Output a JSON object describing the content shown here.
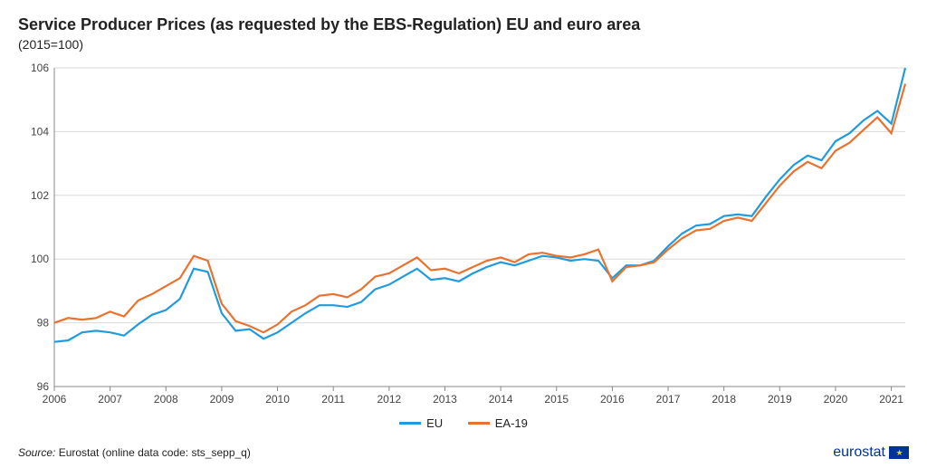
{
  "header": {
    "title": "Service Producer Prices (as requested by the EBS-Regulation)  EU and euro area",
    "subtitle": "(2015=100)"
  },
  "chart": {
    "type": "line",
    "background_color": "#ffffff",
    "grid_color": "#d9d9d9",
    "axis_color": "#888888",
    "axis_fontsize": 12,
    "title_fontsize": 18,
    "line_width": 2.2,
    "y": {
      "min": 96,
      "max": 106,
      "tick_step": 2
    },
    "x": {
      "start_year": 2006,
      "end_year_tick": 2021,
      "points_per_year": 4,
      "ticks": [
        2006,
        2007,
        2008,
        2009,
        2010,
        2011,
        2012,
        2013,
        2014,
        2015,
        2016,
        2017,
        2018,
        2019,
        2020,
        2021
      ]
    },
    "series": [
      {
        "name": "EU",
        "color": "#1f9bde",
        "values": [
          97.4,
          97.45,
          97.7,
          97.75,
          97.7,
          97.6,
          97.95,
          98.25,
          98.4,
          98.75,
          99.7,
          99.6,
          98.3,
          97.75,
          97.8,
          97.5,
          97.7,
          98.0,
          98.3,
          98.55,
          98.55,
          98.5,
          98.65,
          99.05,
          99.2,
          99.45,
          99.7,
          99.35,
          99.4,
          99.3,
          99.55,
          99.75,
          99.9,
          99.8,
          99.95,
          100.1,
          100.05,
          99.95,
          100.0,
          99.95,
          99.4,
          99.8,
          99.8,
          99.95,
          100.4,
          100.8,
          101.05,
          101.1,
          101.35,
          101.4,
          101.35,
          101.95,
          102.5,
          102.95,
          103.25,
          103.1,
          103.7,
          103.95,
          104.35,
          104.65,
          104.25,
          106.0
        ]
      },
      {
        "name": "EA-19",
        "color": "#e9722e",
        "values": [
          98.0,
          98.15,
          98.1,
          98.15,
          98.35,
          98.2,
          98.7,
          98.9,
          99.15,
          99.4,
          100.1,
          99.95,
          98.6,
          98.05,
          97.9,
          97.7,
          97.95,
          98.35,
          98.55,
          98.85,
          98.9,
          98.8,
          99.05,
          99.45,
          99.55,
          99.8,
          100.05,
          99.65,
          99.7,
          99.55,
          99.75,
          99.95,
          100.05,
          99.9,
          100.15,
          100.2,
          100.1,
          100.05,
          100.15,
          100.3,
          99.3,
          99.75,
          99.8,
          99.9,
          100.3,
          100.65,
          100.9,
          100.95,
          101.2,
          101.3,
          101.2,
          101.75,
          102.3,
          102.75,
          103.05,
          102.85,
          103.4,
          103.65,
          104.05,
          104.45,
          103.95,
          105.5
        ]
      }
    ]
  },
  "legend": {
    "items": [
      {
        "label": "EU",
        "color_ref": "EU"
      },
      {
        "label": "EA-19",
        "color_ref": "EA-19"
      }
    ]
  },
  "footer": {
    "source_prefix": "Source:",
    "source_text": "Eurostat (online data code: sts_sepp_q)",
    "logo_text": "eurostat",
    "logo_bg": "#003399",
    "logo_star_color": "#ffcc00"
  }
}
